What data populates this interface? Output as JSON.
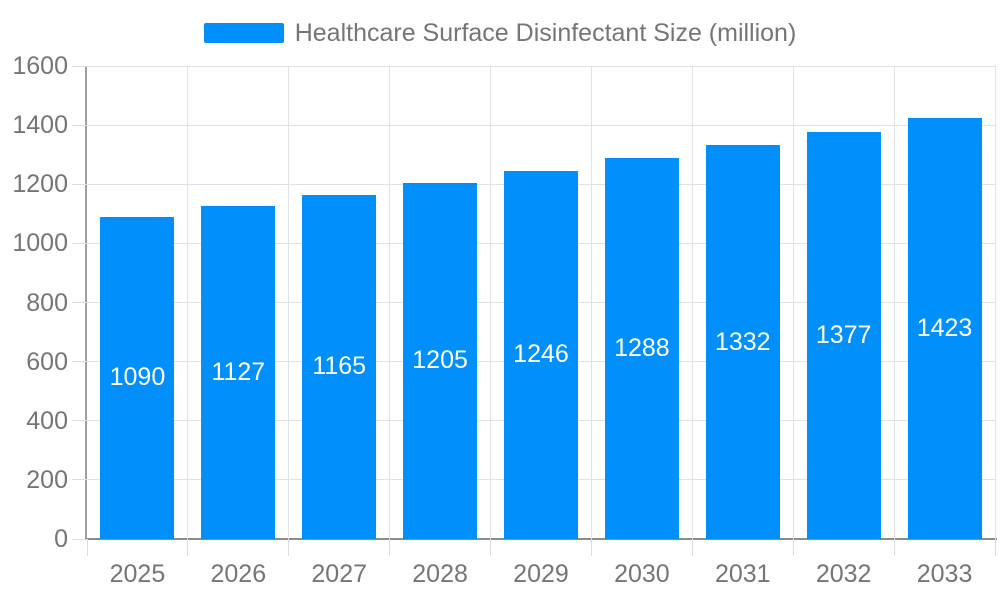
{
  "chart_data": {
    "type": "bar",
    "title": "Healthcare Surface Disinfectant Size (million)",
    "categories": [
      "2025",
      "2026",
      "2027",
      "2028",
      "2029",
      "2030",
      "2031",
      "2032",
      "2033"
    ],
    "series": [
      {
        "name": "Healthcare Surface Disinfectant Size (million)",
        "values": [
          1090,
          1127,
          1165,
          1205,
          1246,
          1288,
          1332,
          1377,
          1423
        ],
        "color": "#008FFB"
      }
    ],
    "xlabel": "",
    "ylabel": "",
    "ylim": [
      0,
      1600
    ],
    "ytick_step": 200,
    "y_tick_labels": [
      "0",
      "200",
      "400",
      "600",
      "800",
      "1000",
      "1200",
      "1400",
      "1600"
    ],
    "grid": true,
    "legend_position": "top",
    "value_labels_position": "inside-center",
    "value_label_color": "#ffffff",
    "axis_label_color": "#757575"
  }
}
